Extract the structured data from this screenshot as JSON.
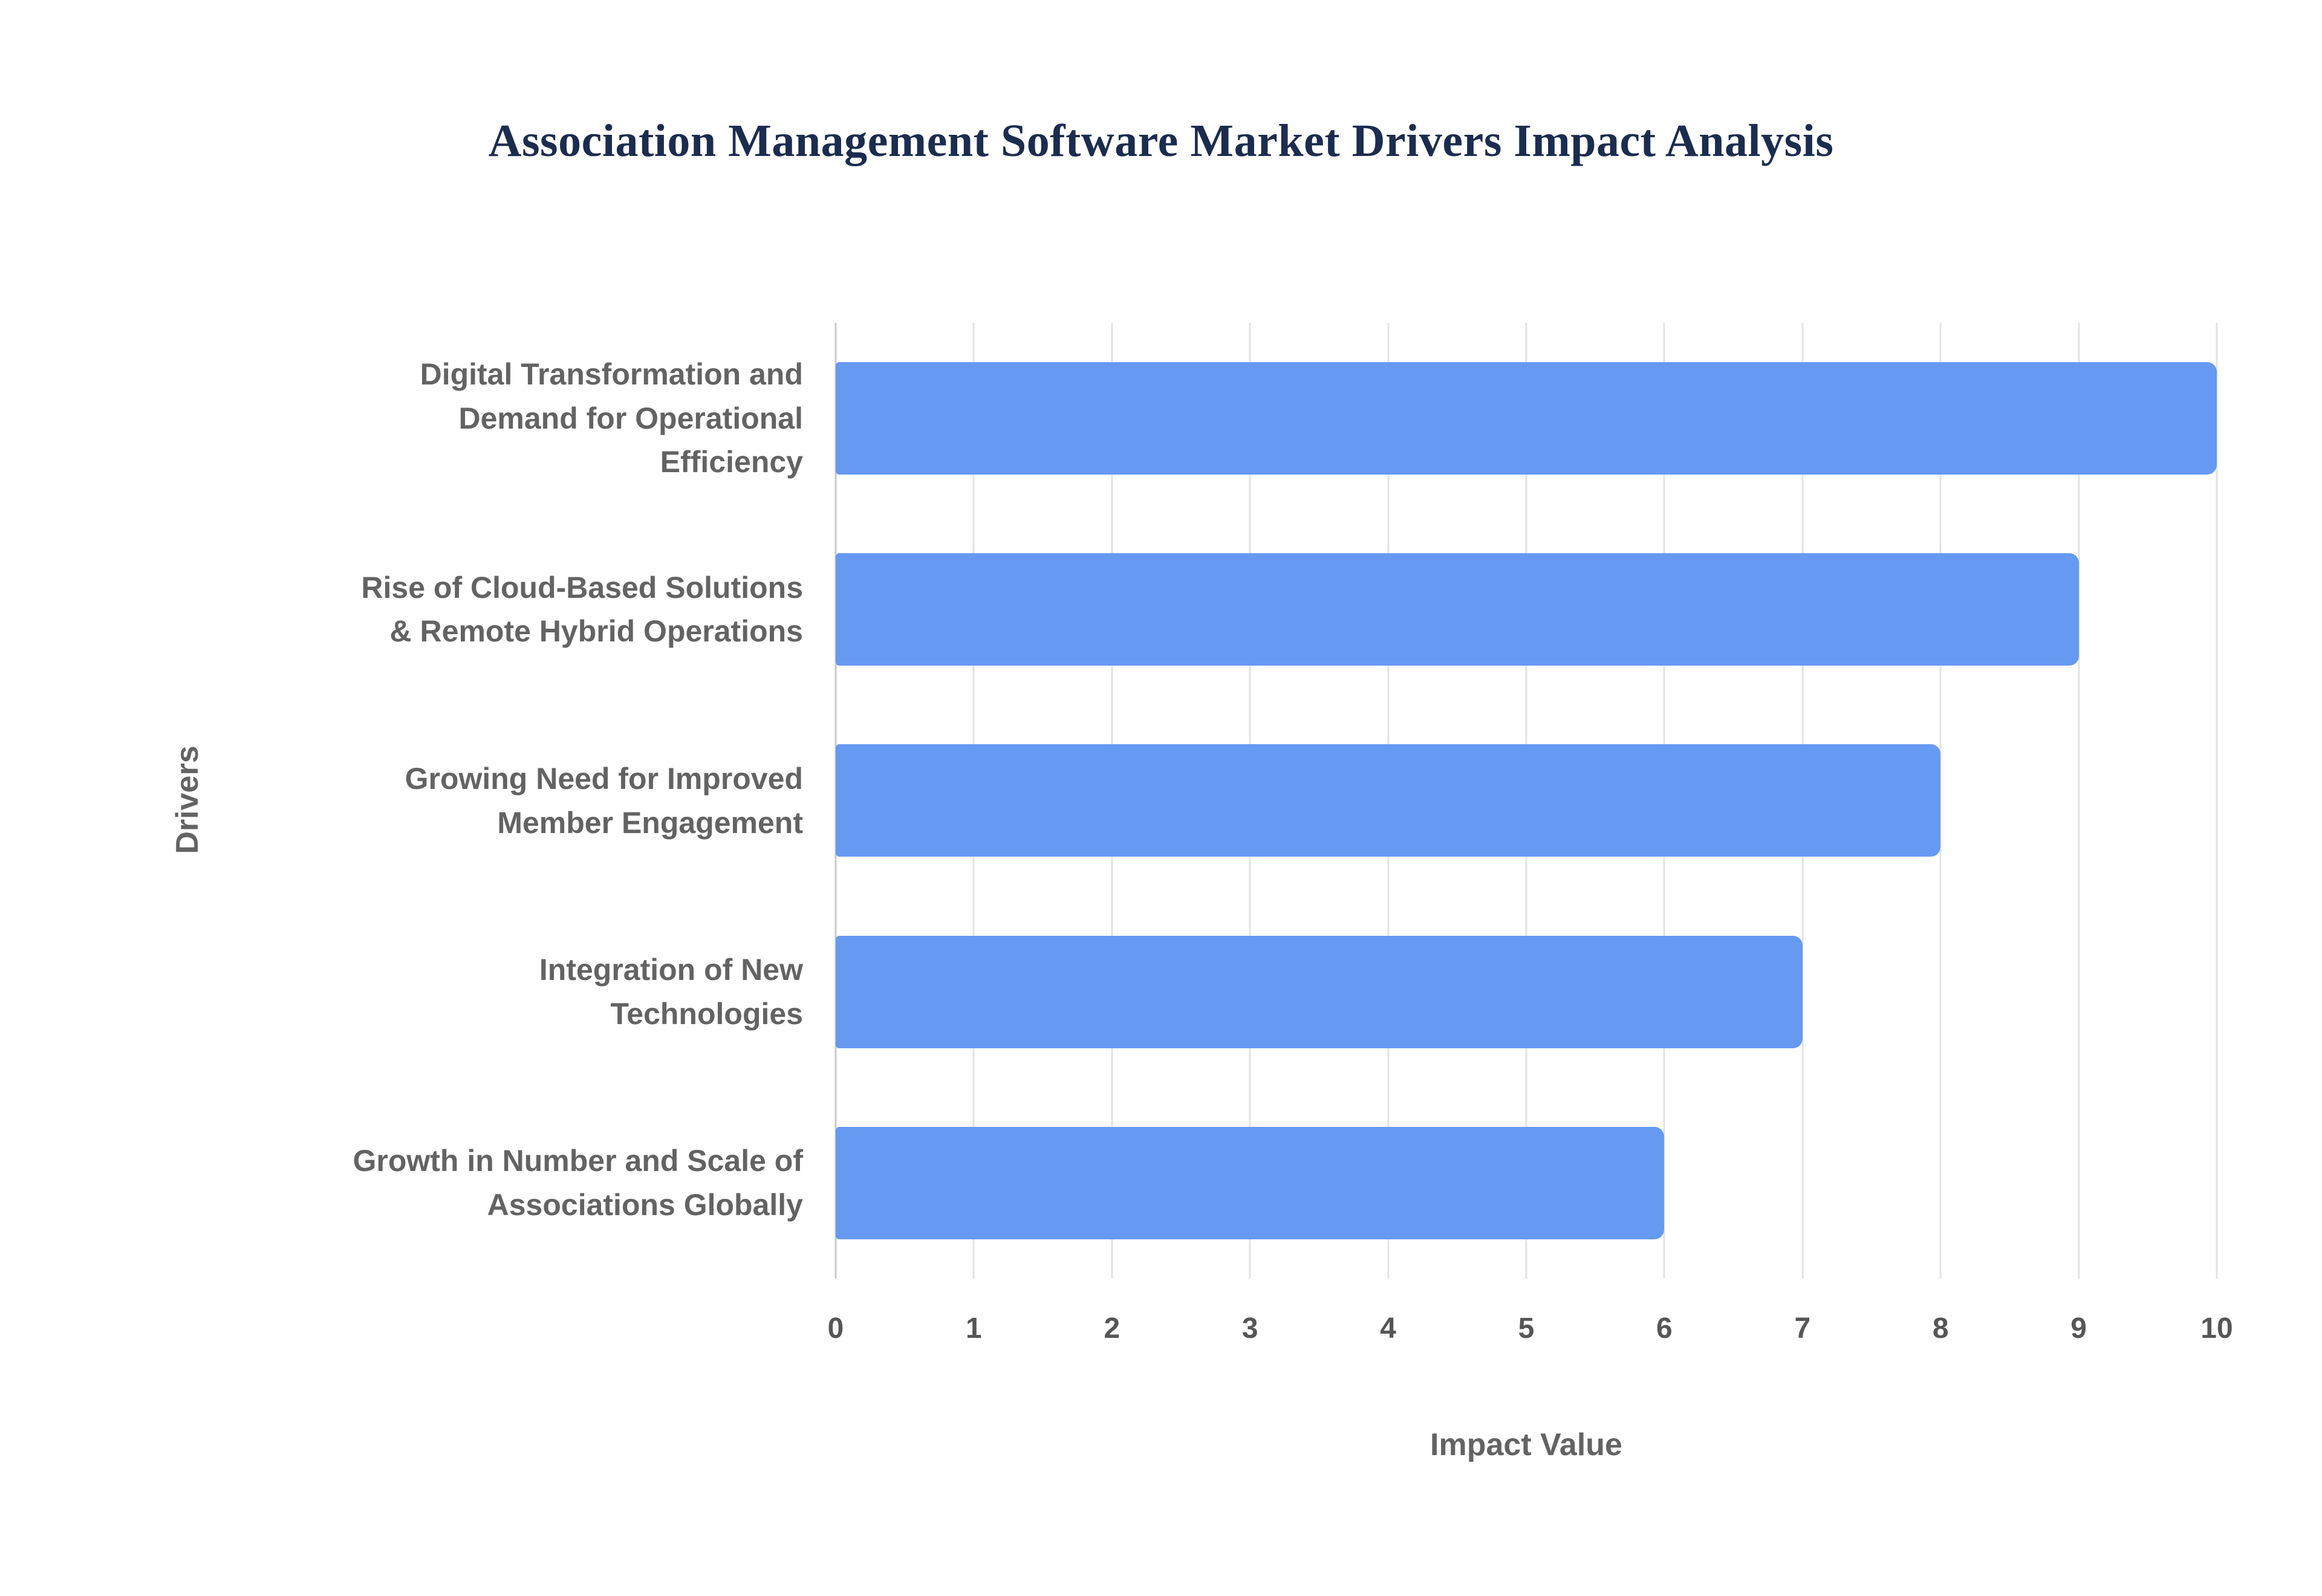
{
  "chart_data": {
    "type": "bar",
    "orientation": "horizontal",
    "title": "Association Management Software Market Drivers Impact Analysis",
    "xlabel": "Impact Value",
    "ylabel": "Drivers",
    "categories": [
      "Digital Transformation and\nDemand for Operational\nEfficiency",
      "Rise of Cloud-Based Solutions\n& Remote Hybrid Operations",
      "Growing Need for Improved\nMember Engagement",
      "Integration of New\nTechnologies",
      "Growth in Number and Scale of\nAssociations Globally"
    ],
    "values": [
      10,
      9,
      8,
      7,
      6
    ],
    "xlim": [
      0,
      10
    ],
    "xticks": [
      0,
      1,
      2,
      3,
      4,
      5,
      6,
      7,
      8,
      9,
      10
    ],
    "grid": true,
    "legend_position": "none",
    "bar_color": "#6699F2",
    "title_color": "#1b2c4f",
    "label_color": "#636363"
  }
}
